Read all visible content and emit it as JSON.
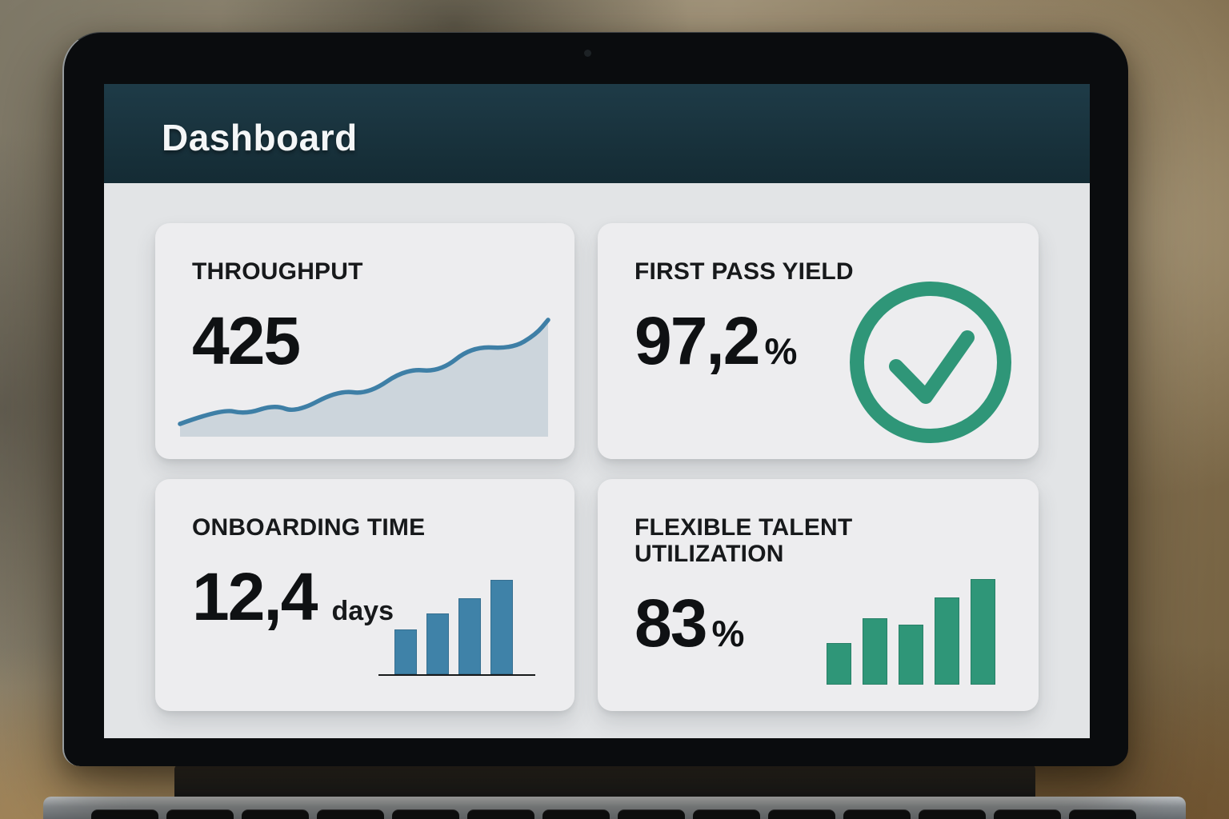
{
  "header": {
    "title": "Dashboard"
  },
  "theme": {
    "header_bg_top": "#1e3b47",
    "header_bg_bottom": "#142b34",
    "content_bg": "#e2e4e6",
    "card_bg": "#ededef",
    "text": "#15171a",
    "accent_blue": "#3f82a8",
    "accent_blue_fill": "#ccd5dc",
    "accent_green": "#2f9678"
  },
  "cards": [
    {
      "title": "THROUGHPUT",
      "value": "425",
      "unit": ""
    },
    {
      "title": "FIRST PASS YIELD",
      "value": "97,2",
      "unit": "%"
    },
    {
      "title": "ONBOARDING TIME",
      "value": "12,4",
      "unit": "days"
    },
    {
      "title": "FLEXIBLE TALENT UTILIZATION",
      "value": "83",
      "unit": "%"
    }
  ],
  "chart_data": [
    {
      "type": "area",
      "title": "THROUGHPUT trend sparkline (no axis labels shown)",
      "x": [
        0,
        52,
        82,
        118,
        145,
        198,
        235,
        282,
        325,
        365,
        415,
        445,
        460
      ],
      "values": [
        16,
        35,
        28,
        40,
        30,
        58,
        53,
        85,
        81,
        113,
        110,
        128,
        146
      ],
      "xlabel": "",
      "ylabel": "",
      "ylim": [
        0,
        148
      ],
      "grid": false,
      "legend": false,
      "line_color": "#3e7fa6",
      "fill_color": "#ccd5dc"
    },
    {
      "type": "bar",
      "title": "ONBOARDING TIME mini bar chart (no axis labels shown)",
      "categories": [
        "",
        "",
        "",
        ""
      ],
      "values": [
        56,
        76,
        95,
        118
      ],
      "bar_color": "#3f82a8",
      "baseline": true,
      "grid": false,
      "legend": false
    },
    {
      "type": "bar",
      "title": "FLEXIBLE TALENT UTILIZATION mini bar chart (no axis labels shown)",
      "categories": [
        "",
        "",
        "",
        "",
        ""
      ],
      "values": [
        52,
        83,
        75,
        109,
        132
      ],
      "bar_color": "#2f9678",
      "baseline": false,
      "grid": false,
      "legend": false
    }
  ]
}
